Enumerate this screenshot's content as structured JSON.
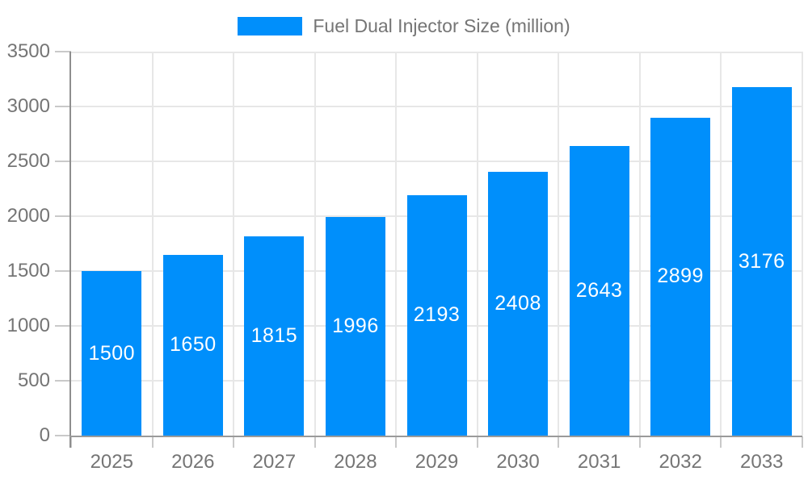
{
  "chart_data": {
    "type": "bar",
    "title": "Fuel Dual Injector Size (million)",
    "categories": [
      "2025",
      "2026",
      "2027",
      "2028",
      "2029",
      "2030",
      "2031",
      "2032",
      "2033"
    ],
    "values": [
      1500,
      1650,
      1815,
      1996,
      2193,
      2408,
      2643,
      2899,
      3176
    ],
    "xlabel": "",
    "ylabel": "",
    "ylim": [
      0,
      3500
    ],
    "ytick_step": 500,
    "yticks": [
      0,
      500,
      1000,
      1500,
      2000,
      2500,
      3000,
      3500
    ],
    "grid": true,
    "legend_position": "top",
    "bar_labels_inside": true
  },
  "colors": {
    "bar": "#008FFB",
    "bar_label": "#ffffff",
    "axis_text": "#757575",
    "grid_line": "#e7e7e7",
    "axis_line": "#8e8e8e",
    "tick_line": "#c9c9c9",
    "background": "#ffffff"
  }
}
